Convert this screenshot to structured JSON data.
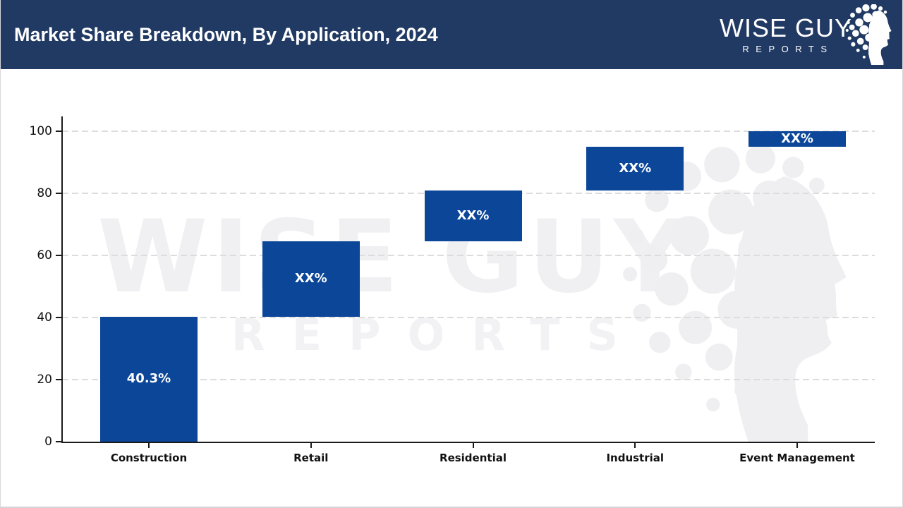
{
  "header": {
    "title": "Market Share Breakdown, By Application, 2024",
    "logo_line1": "WISE GUY",
    "logo_line2": "REPORTS"
  },
  "watermark": {
    "line1": "WISE GUY",
    "line2": "REPORTS"
  },
  "colors": {
    "header_bg": "#213A64",
    "bar_blue": "#0B4699",
    "grid_gray": "#DCDCDC",
    "axis_black": "#1A1A1A",
    "bar_label_white": "#FFFFFF",
    "watermark_gray": "#F0F0F3"
  },
  "chart_data": {
    "type": "bar",
    "subtype": "waterfall",
    "title": "Market Share Breakdown, By Application, 2024",
    "categories": [
      "Construction",
      "Retail",
      "Residential",
      "Industrial",
      "Event Management"
    ],
    "bars": [
      {
        "category": "Construction",
        "start": 0,
        "end": 40.3,
        "value": 40.3,
        "label": "40.3%"
      },
      {
        "category": "Retail",
        "start": 40.3,
        "end": 64.5,
        "value": 24.2,
        "label": "XX%"
      },
      {
        "category": "Residential",
        "start": 64.5,
        "end": 80.8,
        "value": 16.3,
        "label": "XX%"
      },
      {
        "category": "Industrial",
        "start": 80.8,
        "end": 95.0,
        "value": 14.2,
        "label": "XX%"
      },
      {
        "category": "Event Management",
        "start": 95.0,
        "end": 100.0,
        "value": 5.0,
        "label": "XX%"
      }
    ],
    "xlabel": "",
    "ylabel": "",
    "ylim": [
      0,
      100
    ],
    "yticks": [
      0,
      20,
      40,
      60,
      80,
      100
    ],
    "grid": "horizontal-dashed",
    "legend": "none"
  }
}
